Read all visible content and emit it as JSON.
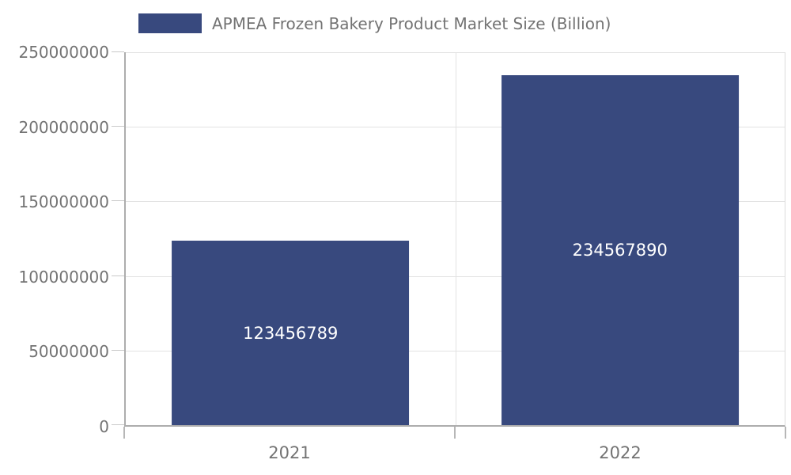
{
  "chart_data": {
    "type": "bar",
    "title": "APMEA Frozen Bakery Product Market Size (Billion)",
    "categories": [
      "2021",
      "2022"
    ],
    "series": [
      {
        "name": "APMEA Frozen Bakery Product Market Size (Billion)",
        "values": [
          123456789,
          234567890
        ]
      }
    ],
    "value_labels": [
      "123456789",
      "234567890"
    ],
    "xlabel": "",
    "ylabel": "",
    "ylim": [
      0,
      250000000
    ],
    "yticks": [
      0,
      50000000,
      100000000,
      150000000,
      200000000,
      250000000
    ],
    "ytick_labels": [
      "0",
      "50000000",
      "100000000",
      "150000000",
      "200000000",
      "250000000"
    ],
    "grid": true,
    "legend_position": "top-left",
    "bar_width_fraction": 0.72
  },
  "legend": {
    "label": "APMEA Frozen Bakery Product Market Size (Billion)"
  },
  "colors": {
    "bar": "#38497E",
    "bar_label": "#FFFFFF",
    "axis_line": "#ADADAD",
    "grid_line": "#E2E2E2",
    "tick_mark": "#C9C9C9",
    "xtick_mark": "#B7B7B7",
    "right_border": "#DCDCDC",
    "label_text": "#737373",
    "background": "#FFFFFF"
  }
}
